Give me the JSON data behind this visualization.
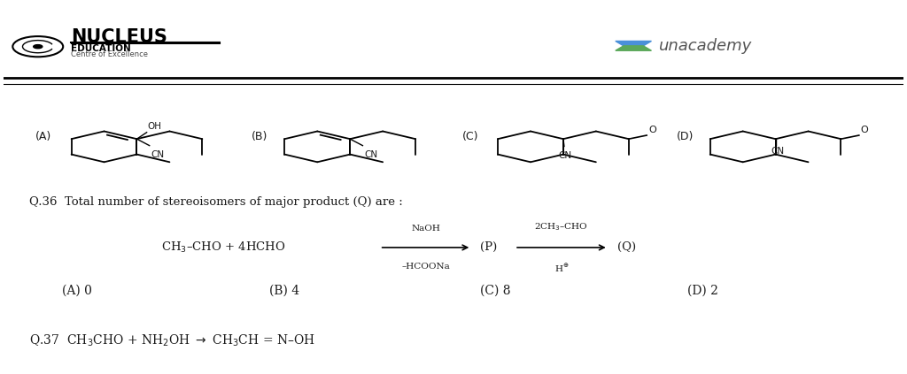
{
  "bg_color": "#ffffff",
  "figsize": [
    10.24,
    4.23
  ],
  "dpi": 100,
  "q36_text": "Q.36  Total number of stereoisomers of major product (Q) are :",
  "choices_q36": [
    "(A) 0",
    "(B) 4",
    "(C) 8",
    "(D) 2"
  ],
  "font_color": "#1a1a1a"
}
